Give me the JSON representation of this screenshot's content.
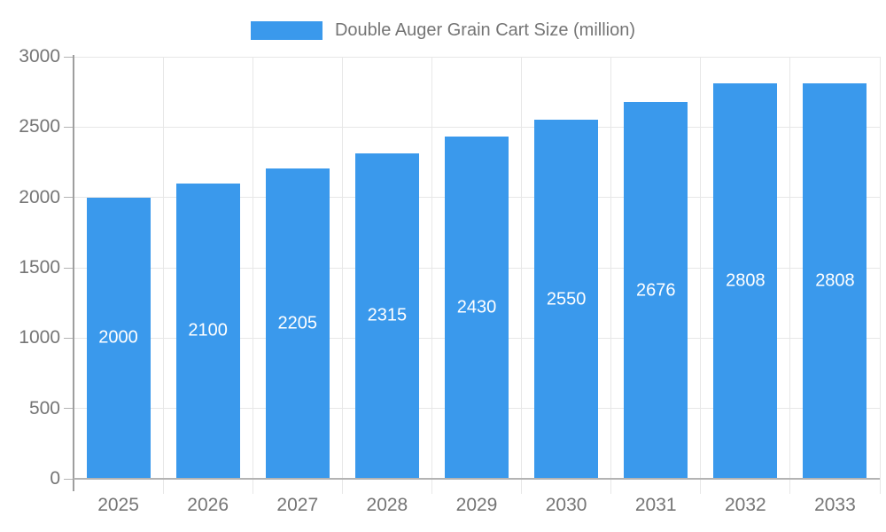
{
  "legend": {
    "label": "Double Auger Grain Cart Size (million)"
  },
  "colors": {
    "bar": "#3a99ec",
    "grid": "#e7e7e7",
    "y_axis": "#9e9e9e",
    "baseline": "#b3b3b3",
    "tick": "#b3b3b3",
    "axis_text": "#757575",
    "bar_label_text": "#ffffff"
  },
  "chart_data": {
    "type": "bar",
    "title": "Double Auger Grain Cart Size (million)",
    "categories": [
      "2025",
      "2026",
      "2027",
      "2028",
      "2029",
      "2030",
      "2031",
      "2032",
      "2033"
    ],
    "values": [
      2000,
      2100,
      2205,
      2315,
      2430,
      2550,
      2676,
      2808,
      2808
    ],
    "xlabel": "",
    "ylabel": "",
    "ylim": [
      0,
      3000
    ],
    "yticks": [
      0,
      500,
      1000,
      1500,
      2000,
      2500,
      3000
    ],
    "grid": true,
    "legend_position": "top",
    "bar_labels_inside": true
  }
}
